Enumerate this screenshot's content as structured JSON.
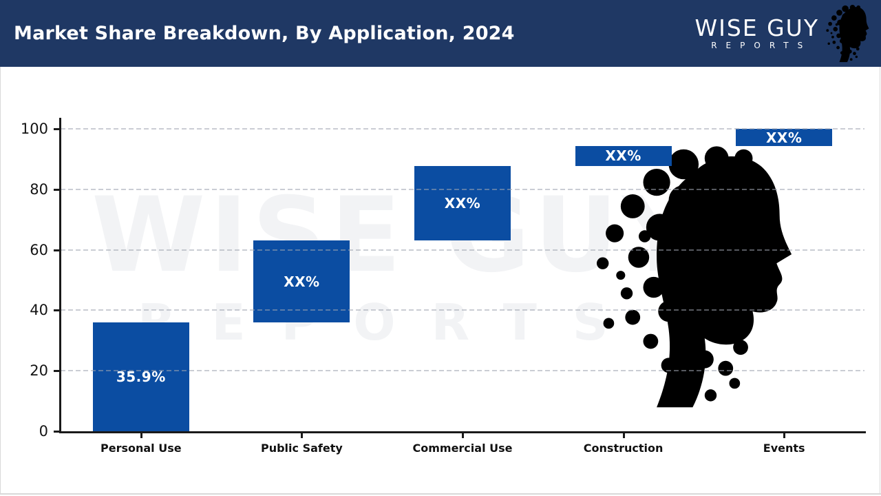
{
  "header": {
    "title": "Market Share Breakdown, By Application, 2024",
    "logo": {
      "line1": "WISE GUY",
      "line2": "REPORTS"
    }
  },
  "watermark": {
    "line1": "WISE GUY",
    "line2": "REPORTS"
  },
  "chart_data": {
    "type": "bar",
    "subtype": "waterfall",
    "title": "Market Share Breakdown, By Application, 2024",
    "categories": [
      "Personal Use",
      "Public Safety",
      "Commercial Use",
      "Construction",
      "Events"
    ],
    "segments": [
      {
        "category": "Personal Use",
        "start": 0,
        "end": 35.9,
        "label": "35.9%"
      },
      {
        "category": "Public Safety",
        "start": 35.9,
        "end": 63.0,
        "label": "XX%"
      },
      {
        "category": "Commercial Use",
        "start": 63.0,
        "end": 87.8,
        "label": "XX%"
      },
      {
        "category": "Construction",
        "start": 87.8,
        "end": 94.3,
        "label": "XX%"
      },
      {
        "category": "Events",
        "start": 94.3,
        "end": 100,
        "label": "XX%"
      }
    ],
    "ylim": [
      0,
      100
    ],
    "y_ticks": [
      0,
      20,
      40,
      60,
      80,
      100
    ],
    "xlabel": "",
    "ylabel": "",
    "grid": "horizontal-dashed-over-bars",
    "legend": "none",
    "colors": {
      "bar": "#0b4da2",
      "header_bg": "#1f3864",
      "axis": "#1a1a1a",
      "grid": "#c9cdd4",
      "bar_label": "#ffffff",
      "watermark": "#f2f3f5"
    }
  }
}
